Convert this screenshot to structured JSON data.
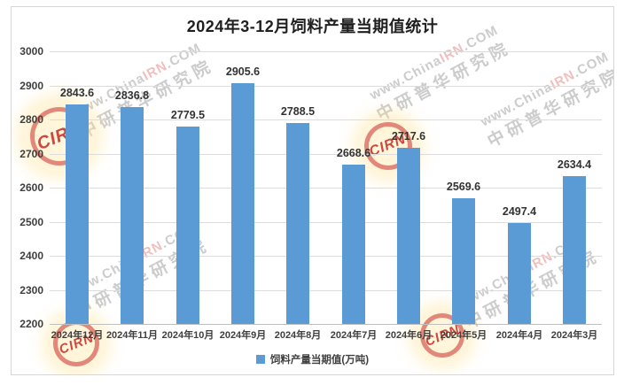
{
  "chart_data": {
    "type": "bar",
    "title": "2024年3-12月饲料产量当期值统计",
    "categories": [
      "2024年12月",
      "2024年11月",
      "2024年10月",
      "2024年9月",
      "2024年8月",
      "2024年7月",
      "2024年6月",
      "2024年5月",
      "2024年4月",
      "2024年3月"
    ],
    "values": [
      2843.6,
      2836.8,
      2779.5,
      2905.6,
      2788.5,
      2668.6,
      2717.6,
      2569.6,
      2497.4,
      2634.4
    ],
    "series_name": "饲料产量当期值(万吨)",
    "xlabel": "",
    "ylabel": "",
    "ylim": [
      2200,
      3000
    ],
    "yticks": [
      3000,
      2900,
      2800,
      2700,
      2600,
      2500,
      2400,
      2300,
      2200
    ],
    "grid": true,
    "legend_position": "bottom",
    "bar_color": "#5B9BD5",
    "data_labels": [
      "2843.6",
      "2836.8",
      "2779.5",
      "2905.6",
      "2788.5",
      "2668.6",
      "2717.6",
      "2569.6",
      "2497.4",
      "2634.4"
    ]
  },
  "legend": {
    "label": "饲料产量当期值(万吨)",
    "marker_color": "#5B9BD5"
  },
  "watermark": {
    "line1_prefix": "www.China",
    "line1_highlight": "IRN",
    "line1_suffix": ".COM",
    "line2": "中研普华研究院",
    "logo_text": "CIRN"
  },
  "colors": {
    "bar": "#5B9BD5",
    "gridline": "#dcdcdc",
    "axis_line": "#bfbfbf",
    "text": "#3f3f3f",
    "title": "#1f1f1f",
    "frame_border": "#d6d6d6"
  }
}
